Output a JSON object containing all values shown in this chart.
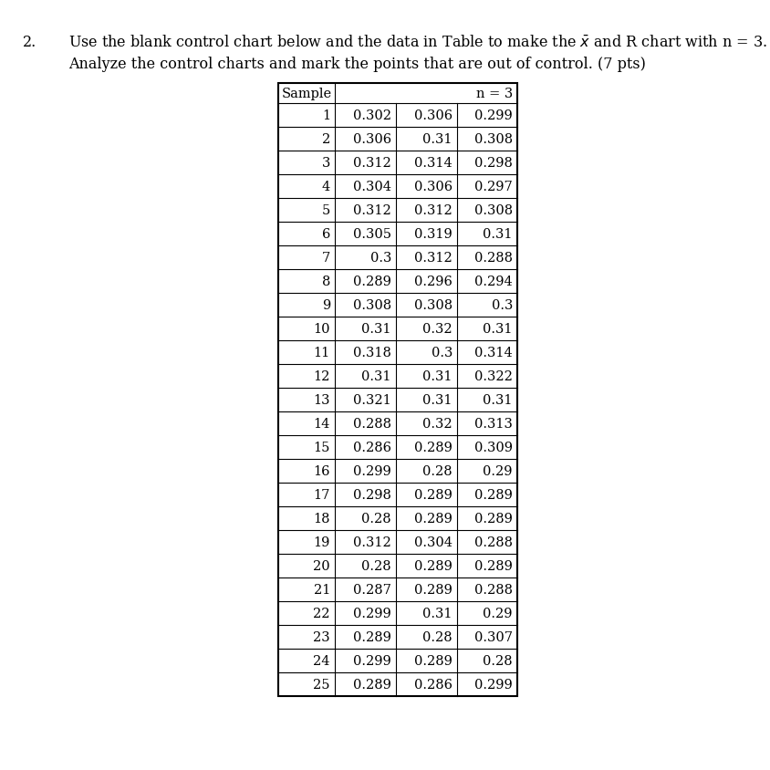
{
  "question_number": "2.",
  "question_text_line1": "Use the blank control chart below and the data in Table to make the $\\bar{x}$ and R chart with n = 3.",
  "question_text_line2": "Analyze the control charts and mark the points that are out of control. (7 pts)",
  "table_header_sample": "Sample",
  "table_header_n": "n = 3",
  "samples": [
    1,
    2,
    3,
    4,
    5,
    6,
    7,
    8,
    9,
    10,
    11,
    12,
    13,
    14,
    15,
    16,
    17,
    18,
    19,
    20,
    21,
    22,
    23,
    24,
    25
  ],
  "col1": [
    0.302,
    0.306,
    0.312,
    0.304,
    0.312,
    0.305,
    0.3,
    0.289,
    0.308,
    0.31,
    0.318,
    0.31,
    0.321,
    0.288,
    0.286,
    0.299,
    0.298,
    0.28,
    0.312,
    0.28,
    0.287,
    0.299,
    0.289,
    0.299,
    0.289
  ],
  "col2": [
    0.306,
    0.31,
    0.314,
    0.306,
    0.312,
    0.319,
    0.312,
    0.296,
    0.308,
    0.32,
    0.3,
    0.31,
    0.31,
    0.32,
    0.289,
    0.28,
    0.289,
    0.289,
    0.304,
    0.289,
    0.289,
    0.31,
    0.28,
    0.289,
    0.286
  ],
  "col3": [
    0.299,
    0.308,
    0.298,
    0.297,
    0.308,
    0.31,
    0.288,
    0.294,
    0.3,
    0.31,
    0.314,
    0.322,
    0.31,
    0.313,
    0.309,
    0.29,
    0.289,
    0.289,
    0.288,
    0.289,
    0.288,
    0.29,
    0.307,
    0.28,
    0.299
  ],
  "bg_color": "#ffffff",
  "text_color": "#000000",
  "border_color": "#000000",
  "font_size_q": 11.5,
  "font_size_tbl": 10.5
}
